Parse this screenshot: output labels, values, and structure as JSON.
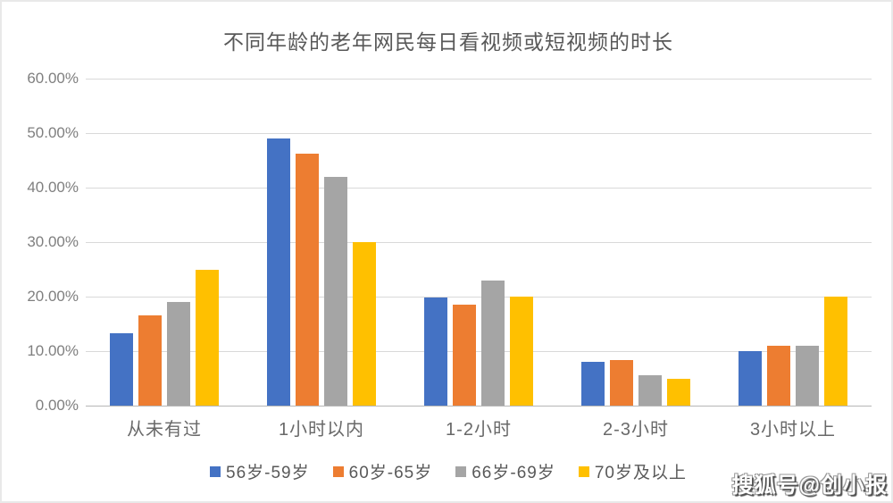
{
  "watermark": "搜狐号@创小报",
  "chart_data": {
    "type": "bar",
    "title": "不同年龄的老年网民每日看视频或短视频的时长",
    "categories": [
      "从未有过",
      "1小时以内",
      "1-2小时",
      "2-3小时",
      "3小时以上"
    ],
    "series": [
      {
        "name": "56岁-59岁",
        "color": "#4472C4",
        "values": [
          13.2,
          49.0,
          19.8,
          8.0,
          10.0
        ]
      },
      {
        "name": "60岁-65岁",
        "color": "#ED7D31",
        "values": [
          16.5,
          46.3,
          18.5,
          8.3,
          11.0
        ]
      },
      {
        "name": "66岁-69岁",
        "color": "#A5A5A5",
        "values": [
          19.0,
          42.0,
          23.0,
          5.5,
          11.0
        ]
      },
      {
        "name": "70岁及以上",
        "color": "#FFC000",
        "values": [
          25.0,
          30.0,
          20.0,
          5.0,
          20.0
        ]
      }
    ],
    "ylim": [
      0,
      60
    ],
    "yticks": [
      "0.00%",
      "10.00%",
      "20.00%",
      "30.00%",
      "40.00%",
      "50.00%",
      "60.00%"
    ],
    "grid": true,
    "legend_position": "bottom",
    "colors": {
      "gridline": "#d9d9d9",
      "axis_line": "#b7b7b7",
      "title_text": "#595959",
      "tick_text": "#7f7f7f"
    }
  }
}
